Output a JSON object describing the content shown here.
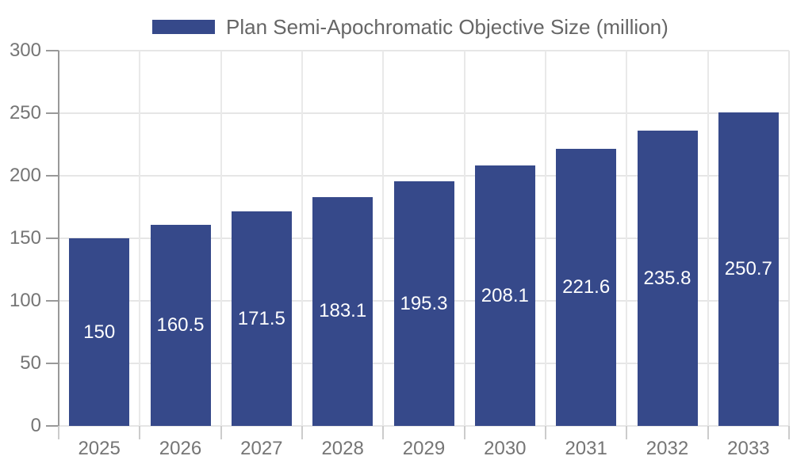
{
  "chart_data": {
    "type": "bar",
    "legend": "Plan Semi-Apochromatic Objective Size (million)",
    "categories": [
      "2025",
      "2026",
      "2027",
      "2028",
      "2029",
      "2030",
      "2031",
      "2032",
      "2033"
    ],
    "values": [
      150,
      160.5,
      171.5,
      183.1,
      195.3,
      208.1,
      221.6,
      235.8,
      250.7
    ],
    "value_labels": [
      "150",
      "160.5",
      "171.5",
      "183.1",
      "195.3",
      "208.1",
      "221.6",
      "235.8",
      "250.7"
    ],
    "title": "",
    "xlabel": "",
    "ylabel": "",
    "ylim": [
      0,
      300
    ],
    "yticks": [
      0,
      50,
      100,
      150,
      200,
      250,
      300
    ],
    "grid": true,
    "legend_position": "top-center",
    "value_label_position": "inside-center",
    "colors": {
      "bar": "#36498a",
      "grid": "#e6e6e6",
      "axis": "#999999",
      "x_tick": "#cccccc",
      "tick_label": "#757575",
      "legend_text": "#666666",
      "value_label": "#ffffff",
      "background": "#ffffff"
    }
  }
}
